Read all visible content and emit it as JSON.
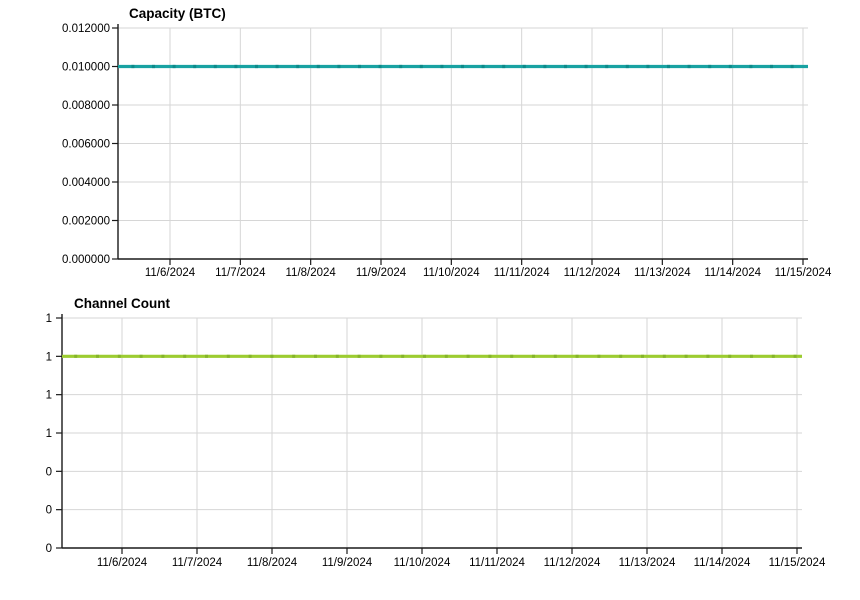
{
  "figure": {
    "background": "#ffffff"
  },
  "style": {
    "grid_color": "#d6d6d6",
    "axis_color": "#1a1a1a",
    "text_color": "#000000",
    "capacity_line_color": "#18a2a2",
    "capacity_marker_color": "#0c8888",
    "channel_line_color": "#9ccc31",
    "channel_marker_color": "#83b22a"
  },
  "chart_data": [
    {
      "type": "line",
      "title": "Capacity (BTC)",
      "x_tick_labels": [
        "11/6/2024",
        "11/7/2024",
        "11/8/2024",
        "11/9/2024",
        "11/10/2024",
        "11/11/2024",
        "11/12/2024",
        "11/13/2024",
        "11/14/2024",
        "11/15/2024"
      ],
      "y_tick_labels": [
        "0.012000",
        "0.010000",
        "0.008000",
        "0.006000",
        "0.004000",
        "0.002000",
        "0.000000"
      ],
      "y_tick_values": [
        0.012,
        0.01,
        0.008,
        0.006,
        0.004,
        0.002,
        0.0
      ],
      "ylim": [
        0,
        0.012
      ],
      "grid": true,
      "legend": "none",
      "series": [
        {
          "name": "Capacity (BTC)",
          "constant_value": 0.01,
          "values": [
            0.01,
            0.01,
            0.01,
            0.01,
            0.01,
            0.01,
            0.01,
            0.01,
            0.01,
            0.01
          ],
          "color": "#18a2a2",
          "marker_color": "#0c8888"
        }
      ]
    },
    {
      "type": "line",
      "title": "Channel Count",
      "x_tick_labels": [
        "11/6/2024",
        "11/7/2024",
        "11/8/2024",
        "11/9/2024",
        "11/10/2024",
        "11/11/2024",
        "11/12/2024",
        "11/13/2024",
        "11/14/2024",
        "11/15/2024"
      ],
      "y_tick_labels": [
        "1",
        "1",
        "1",
        "1",
        "0",
        "0",
        "0"
      ],
      "y_tick_values": [
        1.2,
        1.0,
        0.8,
        0.6,
        0.4,
        0.2,
        0.0
      ],
      "ylim": [
        0,
        1.2
      ],
      "grid": true,
      "legend": "none",
      "series": [
        {
          "name": "Channel Count",
          "constant_value": 1,
          "values": [
            1,
            1,
            1,
            1,
            1,
            1,
            1,
            1,
            1,
            1
          ],
          "color": "#9ccc31",
          "marker_color": "#83b22a"
        }
      ]
    }
  ]
}
